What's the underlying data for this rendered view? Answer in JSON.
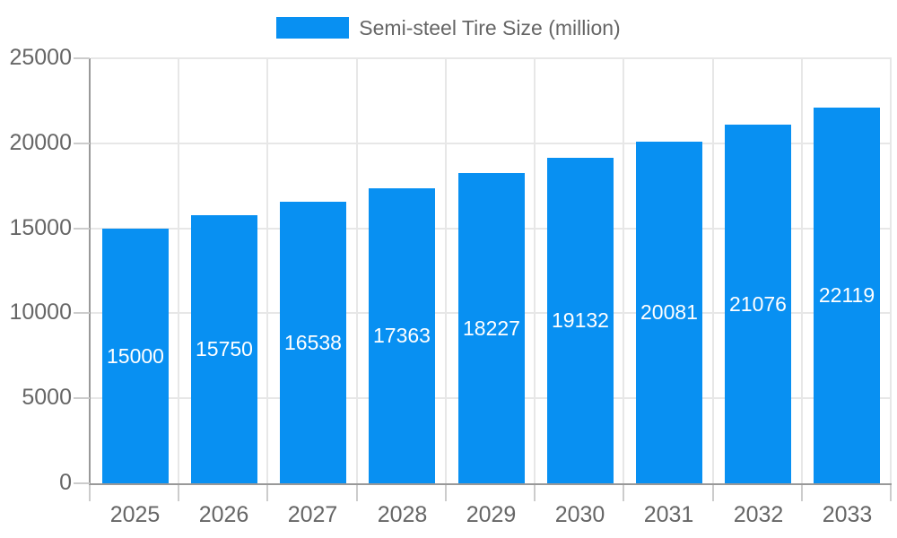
{
  "legend": {
    "label": "Semi-steel Tire Size (million)",
    "swatch_color": "#0890f2"
  },
  "chart_data": {
    "type": "bar",
    "title": "Semi-steel Tire Size (million)",
    "series_name": "Semi-steel Tire Size (million)",
    "categories": [
      "2025",
      "2026",
      "2027",
      "2028",
      "2029",
      "2030",
      "2031",
      "2032",
      "2033"
    ],
    "values": [
      15000,
      15750,
      16538,
      17363,
      18227,
      19132,
      20081,
      21076,
      22119
    ],
    "value_labels": [
      "15000",
      "15750",
      "16538",
      "17363",
      "18227",
      "19132",
      "20081",
      "21076",
      "22119"
    ],
    "xlabel": "",
    "ylabel": "",
    "ylim": [
      0,
      25000
    ],
    "yticks": [
      0,
      5000,
      10000,
      15000,
      20000,
      25000
    ],
    "ytick_labels": [
      "0",
      "5000",
      "10000",
      "15000",
      "20000",
      "25000"
    ],
    "grid": "both",
    "legend_position": "top-center",
    "bar_color": "#0890f2",
    "value_label_color": "#ffffff",
    "axis_label_color": "#666666",
    "axis_line_color": "#999999",
    "gridline_color": "#e7e7e7",
    "tick_color": "#cccccc"
  }
}
